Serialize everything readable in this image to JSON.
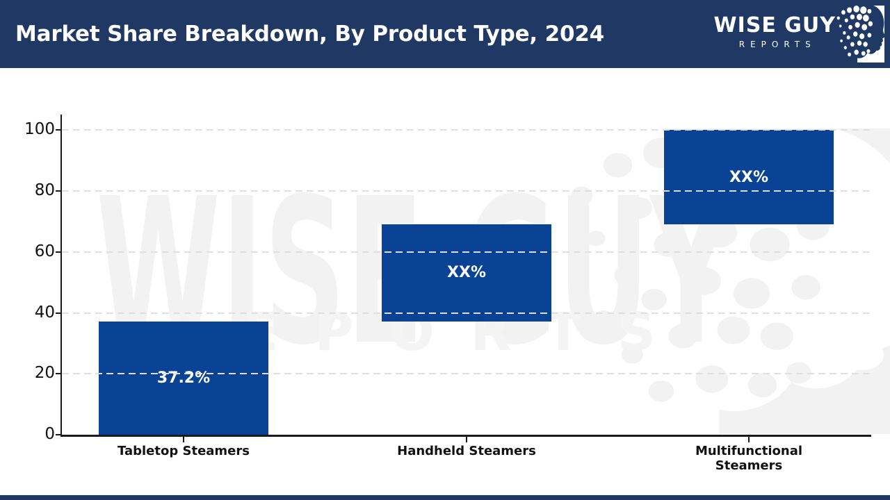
{
  "header": {
    "title": "Market Share Breakdown, By Product Type, 2024",
    "logo": {
      "line1": "WISE GUY",
      "line2": "REPORTS"
    }
  },
  "watermark": {
    "line1": "WISE GUY",
    "line2": "REPORTS"
  },
  "chart_data": {
    "type": "bar",
    "variant": "floating segment bars (waterfall-style market share breakdown)",
    "title": "Market Share Breakdown, By Product Type, 2024",
    "categories": [
      "Tabletop Steamers",
      "Handheld Steamers",
      "Multifunctional Steamers"
    ],
    "segments": [
      {
        "category": "Tabletop Steamers",
        "start": 0,
        "end": 37.2,
        "label": "37.2%"
      },
      {
        "category": "Handheld Steamers",
        "start": 37.2,
        "end": 69.1,
        "label": "XX%"
      },
      {
        "category": "Multifunctional Steamers",
        "start": 69.1,
        "end": 100,
        "label": "XX%"
      }
    ],
    "xlabel": "",
    "ylabel": "",
    "yticks": [
      0,
      20,
      40,
      60,
      80,
      100
    ],
    "ylim": [
      0,
      105
    ],
    "grid": true,
    "gridline_style": "dashed horizontal, drawn over bars",
    "legend": null,
    "colors": {
      "bar": "#0a4296",
      "bar_label": "#ffffff",
      "header_bg": "#1f3864",
      "axis": "#1a1a1a",
      "gridline": "#e0e0e0",
      "watermark": "#f2f2f2"
    }
  }
}
